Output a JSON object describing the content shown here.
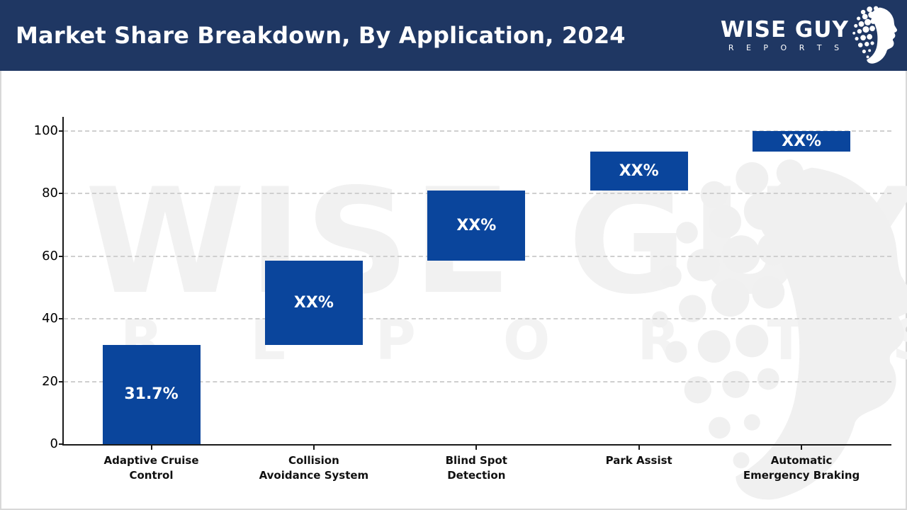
{
  "header": {
    "title": "Market Share Breakdown, By Application, 2024",
    "logo": {
      "wordmark": "WISE GUY",
      "subtitle": "R E P O R T S"
    }
  },
  "watermark": {
    "wordmark": "WISE GUY",
    "subtitle": "R E P O R T S"
  },
  "colors": {
    "header_bg": "#1f3763",
    "bar": "#0a459c",
    "grid": "#cfcfcf",
    "axis": "#1a1a1a",
    "watermark": "#f1f1f1",
    "page_border": "#d8d8d8"
  },
  "chart_data": {
    "type": "bar",
    "subtype": "waterfall",
    "title": "Market Share Breakdown, By Application, 2024",
    "categories": [
      "Adaptive Cruise Control",
      "Collision Avoidance System",
      "Blind Spot Detection",
      "Park Assist",
      "Automatic Emergency Braking"
    ],
    "category_label_lines": [
      [
        "Adaptive Cruise",
        "Control"
      ],
      [
        "Collision",
        "Avoidance System"
      ],
      [
        "Blind Spot",
        "Detection"
      ],
      [
        "Park Assist"
      ],
      [
        "Automatic",
        "Emergency Braking"
      ]
    ],
    "segments": [
      {
        "start": 0,
        "end": 31.7,
        "label": "31.7%"
      },
      {
        "start": 31.7,
        "end": 58.5,
        "label": "XX%"
      },
      {
        "start": 58.5,
        "end": 81.0,
        "label": "XX%"
      },
      {
        "start": 81.0,
        "end": 93.5,
        "label": "XX%"
      },
      {
        "start": 93.5,
        "end": 100.0,
        "label": "XX%"
      }
    ],
    "y_ticks": [
      0,
      20,
      40,
      60,
      80,
      100
    ],
    "ylim": [
      0,
      104.5
    ],
    "xlabel": "",
    "ylabel": "",
    "grid": "horizontal dashed",
    "legend": "none",
    "bar_color": "#0a459c",
    "bar_label_color": "#ffffff"
  }
}
